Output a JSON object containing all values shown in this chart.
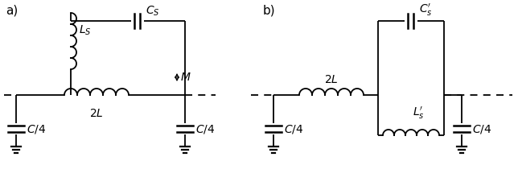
{
  "fig_width": 6.44,
  "fig_height": 2.36,
  "dpi": 100,
  "background": "#ffffff",
  "line_color": "#000000",
  "lw": 1.3,
  "label_a": "a)",
  "label_b": "b)"
}
